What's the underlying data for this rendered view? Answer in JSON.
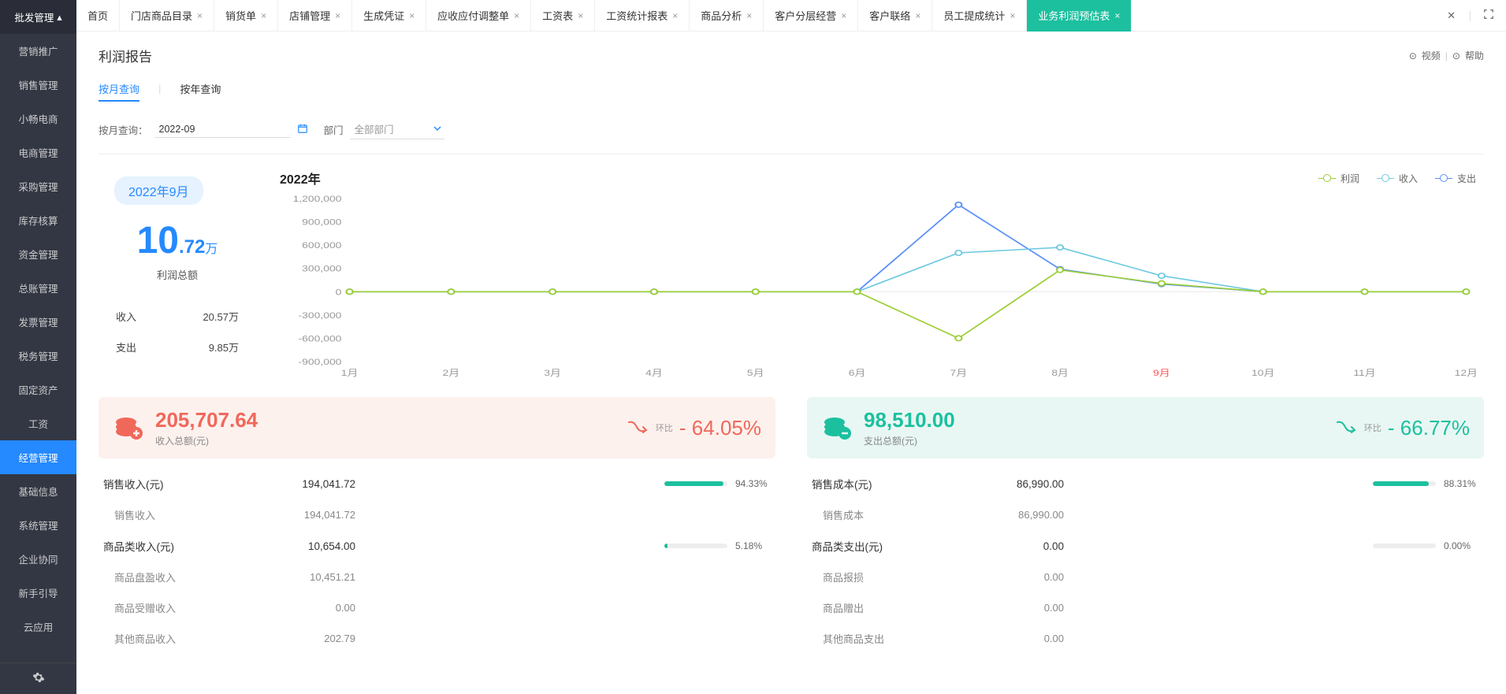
{
  "sidebar": {
    "header": "批发管理",
    "items": [
      "营销推广",
      "销售管理",
      "小畅电商",
      "电商管理",
      "采购管理",
      "库存核算",
      "资金管理",
      "总账管理",
      "发票管理",
      "税务管理",
      "固定资产",
      "工资",
      "经营管理",
      "基础信息",
      "系统管理",
      "企业协同",
      "新手引导",
      "云应用"
    ],
    "active_index": 12
  },
  "tabs": {
    "items": [
      "首页",
      "门店商品目录",
      "销货单",
      "店铺管理",
      "生成凭证",
      "应收应付调整单",
      "工资表",
      "工资统计报表",
      "商品分析",
      "客户分层经营",
      "客户联络",
      "员工提成统计",
      "业务利润预估表"
    ],
    "closable_from": 1,
    "active_index": 12
  },
  "page": {
    "title": "利润报告",
    "help_video": "视频",
    "help_text": "帮助"
  },
  "subtabs": {
    "items": [
      "按月查询",
      "按年查询"
    ],
    "active_index": 0
  },
  "filters": {
    "month_label": "按月查询：",
    "month_value": "2022-09",
    "dept_label": "部门",
    "dept_value": "全部部门"
  },
  "summary": {
    "badge": "2022年9月",
    "profit_whole": "10",
    "profit_frac": ".72",
    "profit_unit": "万",
    "profit_label": "利润总额",
    "income_label": "收入",
    "income_value": "20.57万",
    "expense_label": "支出",
    "expense_value": "9.85万"
  },
  "chart": {
    "title": "2022年",
    "legend": [
      {
        "name": "利润",
        "color": "#9acd32"
      },
      {
        "name": "收入",
        "color": "#6ec9e0"
      },
      {
        "name": "支出",
        "color": "#5b8ff9"
      }
    ],
    "y_ticks": [
      1200000,
      900000,
      600000,
      300000,
      0,
      -300000,
      -600000,
      -900000
    ],
    "x_labels": [
      "1月",
      "2月",
      "3月",
      "4月",
      "5月",
      "6月",
      "7月",
      "8月",
      "9月",
      "10月",
      "11月",
      "12月"
    ],
    "x_highlight_index": 8,
    "series": {
      "profit": [
        0,
        0,
        0,
        0,
        0,
        0,
        -600000,
        280000,
        107000,
        0,
        0,
        0
      ],
      "income": [
        0,
        0,
        0,
        0,
        0,
        0,
        500000,
        570000,
        205000,
        0,
        0,
        0
      ],
      "expense": [
        0,
        0,
        0,
        0,
        0,
        0,
        1120000,
        290000,
        98000,
        0,
        0,
        0
      ]
    },
    "colors": {
      "profit": "#9acd32",
      "income": "#6ec9e0",
      "expense": "#5b8ff9",
      "grid": "#e8e8e8",
      "axis_text": "#999",
      "highlight": "#f55"
    },
    "y_min": -900000,
    "y_max": 1200000
  },
  "income_card": {
    "total": "205,707.64",
    "total_label": "收入总额(元)",
    "ratio_label": "环比",
    "ratio_value": "- 64.05%",
    "accent": "#f0685a",
    "bar_color": "#1cc09f",
    "rows": [
      {
        "name": "销售收入(元)",
        "value": "194,041.72",
        "pct": 94.33,
        "pct_text": "94.33%",
        "type": "main"
      },
      {
        "name": "销售收入",
        "value": "194,041.72",
        "type": "sub"
      },
      {
        "name": "商品类收入(元)",
        "value": "10,654.00",
        "pct": 5.18,
        "pct_text": "5.18%",
        "type": "main"
      },
      {
        "name": "商品盘盈收入",
        "value": "10,451.21",
        "type": "sub"
      },
      {
        "name": "商品受赠收入",
        "value": "0.00",
        "type": "sub"
      },
      {
        "name": "其他商品收入",
        "value": "202.79",
        "type": "sub"
      }
    ]
  },
  "expense_card": {
    "total": "98,510.00",
    "total_label": "支出总额(元)",
    "ratio_label": "环比",
    "ratio_value": "- 66.77%",
    "accent": "#1cc09f",
    "bar_color": "#1cc09f",
    "rows": [
      {
        "name": "销售成本(元)",
        "value": "86,990.00",
        "pct": 88.31,
        "pct_text": "88.31%",
        "type": "main"
      },
      {
        "name": "销售成本",
        "value": "86,990.00",
        "type": "sub"
      },
      {
        "name": "商品类支出(元)",
        "value": "0.00",
        "pct": 0.0,
        "pct_text": "0.00%",
        "type": "main"
      },
      {
        "name": "商品报损",
        "value": "0.00",
        "type": "sub"
      },
      {
        "name": "商品赠出",
        "value": "0.00",
        "type": "sub"
      },
      {
        "name": "其他商品支出",
        "value": "0.00",
        "type": "sub"
      }
    ]
  }
}
